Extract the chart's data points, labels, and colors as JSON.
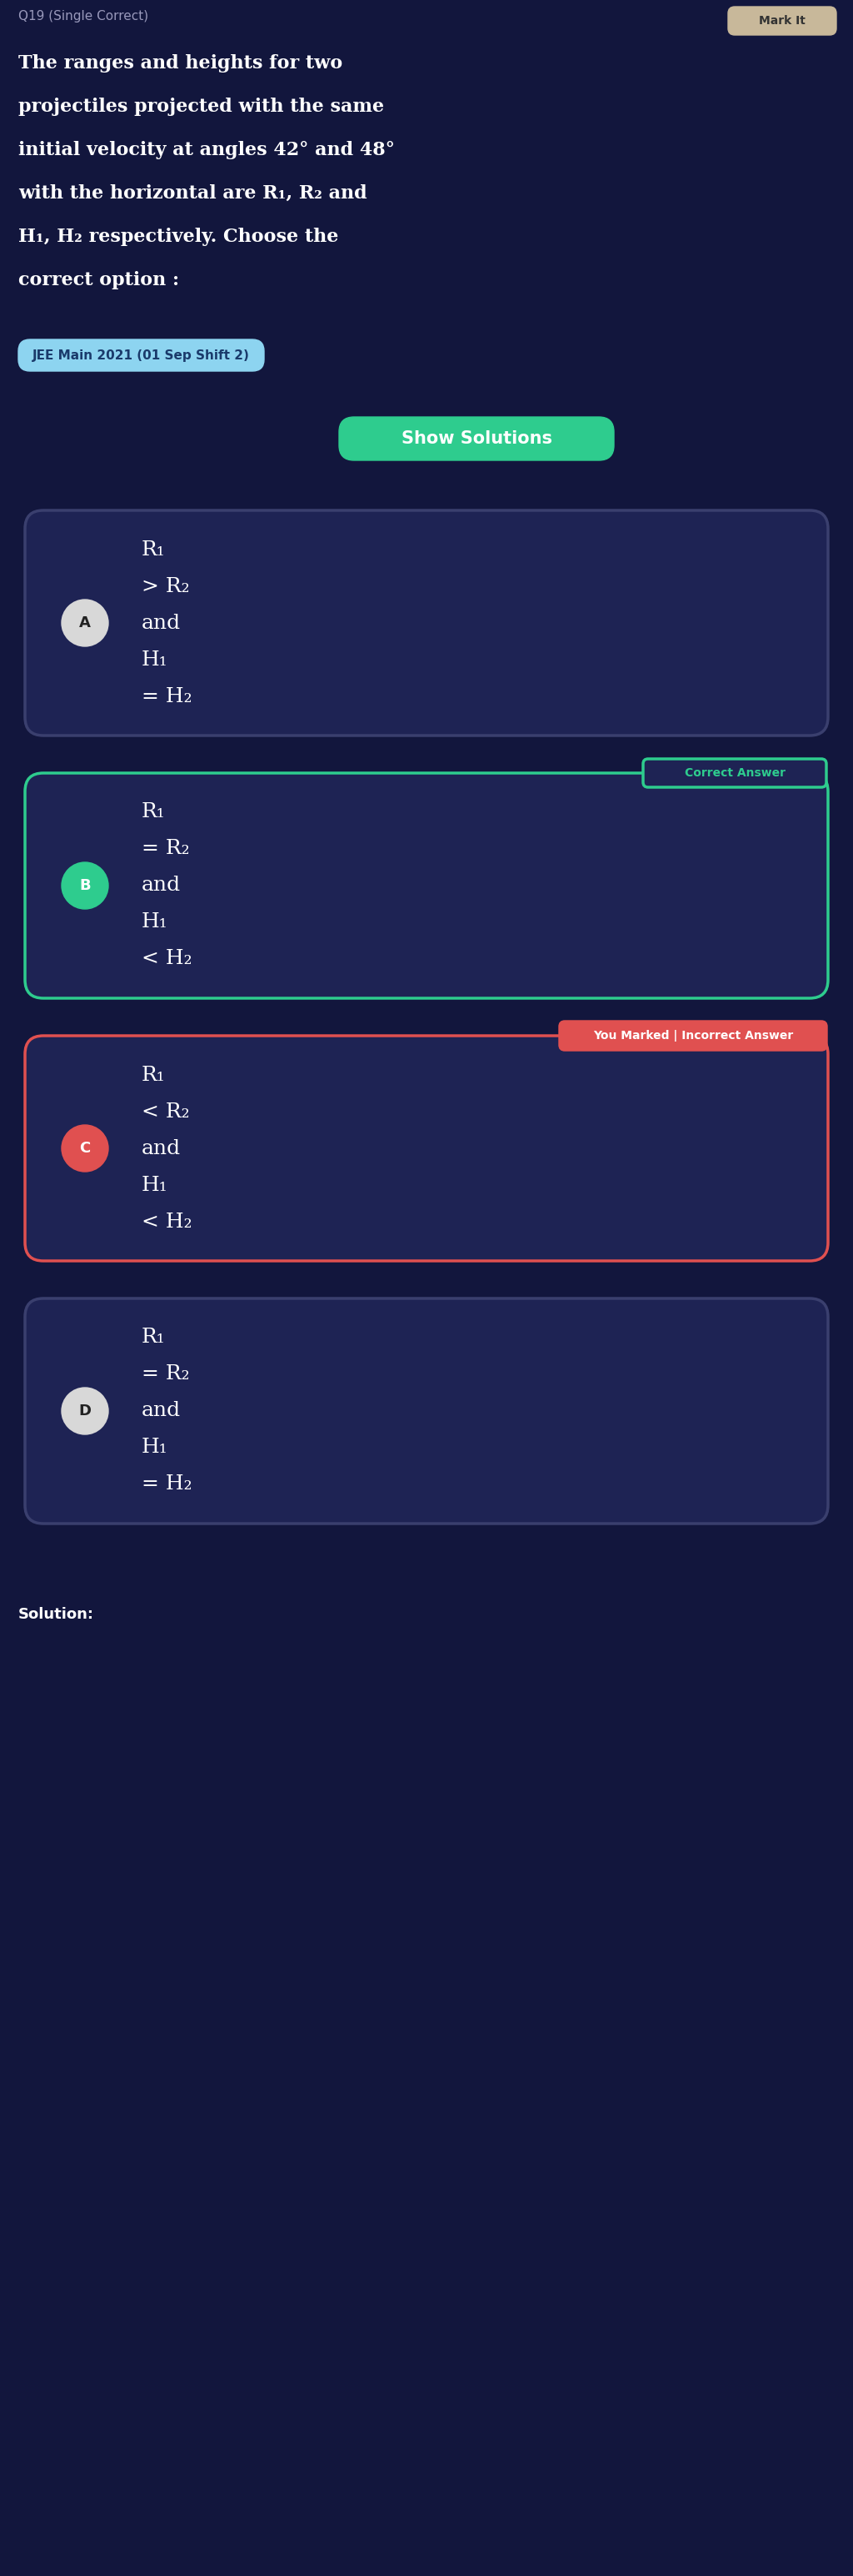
{
  "bg_color": "#12163d",
  "header_text": "Q19 (Single Correct)",
  "mark_it_text": "Mark It",
  "question_lines": [
    "The ranges and heights for two",
    "projectiles projected with the same",
    "initial velocity at angles 42° and 48°",
    "with the horizontal are R₁, R₂ and",
    "H₁, H₂ respectively. Choose the",
    "correct option :"
  ],
  "tag_text": "JEE Main 2021 (01 Sep Shift 2)",
  "tag_bg": "#8dd4f0",
  "tag_fg": "#1a3a6b",
  "show_solutions_text": "Show Solutions",
  "show_solutions_bg": "#2ecc8e",
  "show_solutions_fg": "#ffffff",
  "options": [
    {
      "label": "A",
      "label_bg": "#d8d8d8",
      "label_fg": "#222222",
      "text_lines": [
        "R₁",
        "> R₂",
        "and",
        "H₁",
        "= H₂"
      ],
      "box_border": "#3a3f6e",
      "box_bg": "#1e2354",
      "correct": false,
      "incorrect": false
    },
    {
      "label": "B",
      "label_bg": "#2ecc8e",
      "label_fg": "#ffffff",
      "text_lines": [
        "R₁",
        "= R₂",
        "and",
        "H₁",
        "< H₂"
      ],
      "box_border": "#2ecc8e",
      "box_bg": "#1e2354",
      "correct": true,
      "incorrect": false,
      "badge_text": "Correct Answer",
      "badge_bg": "#1e2354",
      "badge_fg": "#2ecc8e",
      "badge_border": "#2ecc8e"
    },
    {
      "label": "C",
      "label_bg": "#e05050",
      "label_fg": "#ffffff",
      "text_lines": [
        "R₁",
        "< R₂",
        "and",
        "H₁",
        "< H₂"
      ],
      "box_border": "#e05050",
      "box_bg": "#1e2354",
      "correct": false,
      "incorrect": true,
      "badge_text": "You Marked | Incorrect Answer",
      "badge_bg": "#e05050",
      "badge_fg": "#ffffff",
      "badge_border": "#e05050"
    },
    {
      "label": "D",
      "label_bg": "#d8d8d8",
      "label_fg": "#222222",
      "text_lines": [
        "R₁",
        "= R₂",
        "and",
        "H₁",
        "= H₂"
      ],
      "box_border": "#3a3f6e",
      "box_bg": "#1e2354",
      "correct": false,
      "incorrect": false
    }
  ],
  "solution_label": "Solution:",
  "solution_label_color": "#ffffff"
}
